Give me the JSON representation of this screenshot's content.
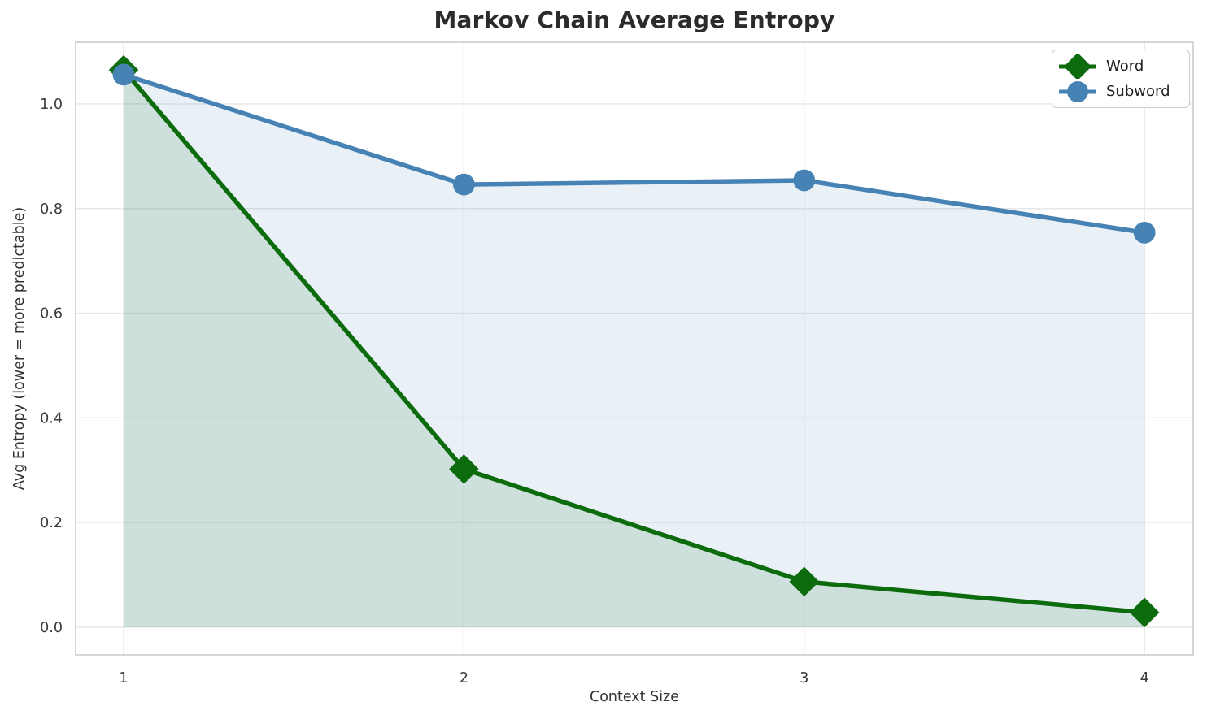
{
  "title": "Markov Chain Average Entropy",
  "colors": {
    "word": "#0c6b0c",
    "subword": "#4682b4",
    "grid": "#e7e7e7",
    "spine": "#cccccc",
    "tick_text": "#3a3a3a",
    "title_text": "#2b2b2b",
    "background": "#ffffff",
    "legend_border": "#cccccc"
  },
  "chart_data": {
    "type": "line",
    "x": [
      1,
      2,
      3,
      4
    ],
    "series": [
      {
        "name": "Word",
        "values": [
          1.065,
          0.302,
          0.087,
          0.028
        ],
        "color": "#0c6b0c",
        "marker": "diamond",
        "fill_to_zero": true,
        "fill_opacity": 0.12
      },
      {
        "name": "Subword",
        "values": [
          1.056,
          0.846,
          0.854,
          0.754
        ],
        "color": "#4682b4",
        "marker": "circle",
        "fill_to_zero": true,
        "fill_opacity": 0.12
      }
    ],
    "title": "Markov Chain Average Entropy",
    "xlabel": "Context Size",
    "ylabel": "Avg Entropy (lower = more predictable)",
    "xticks": [
      "1",
      "2",
      "3",
      "4"
    ],
    "yticks": [
      "0.0",
      "0.2",
      "0.4",
      "0.6",
      "0.8",
      "1.0"
    ],
    "xlim": [
      0.859,
      4.143
    ],
    "ylim": [
      -0.053,
      1.118
    ],
    "grid": true,
    "legend_position": "upper right"
  },
  "legend": {
    "items": [
      {
        "label": "Word"
      },
      {
        "label": "Subword"
      }
    ]
  }
}
